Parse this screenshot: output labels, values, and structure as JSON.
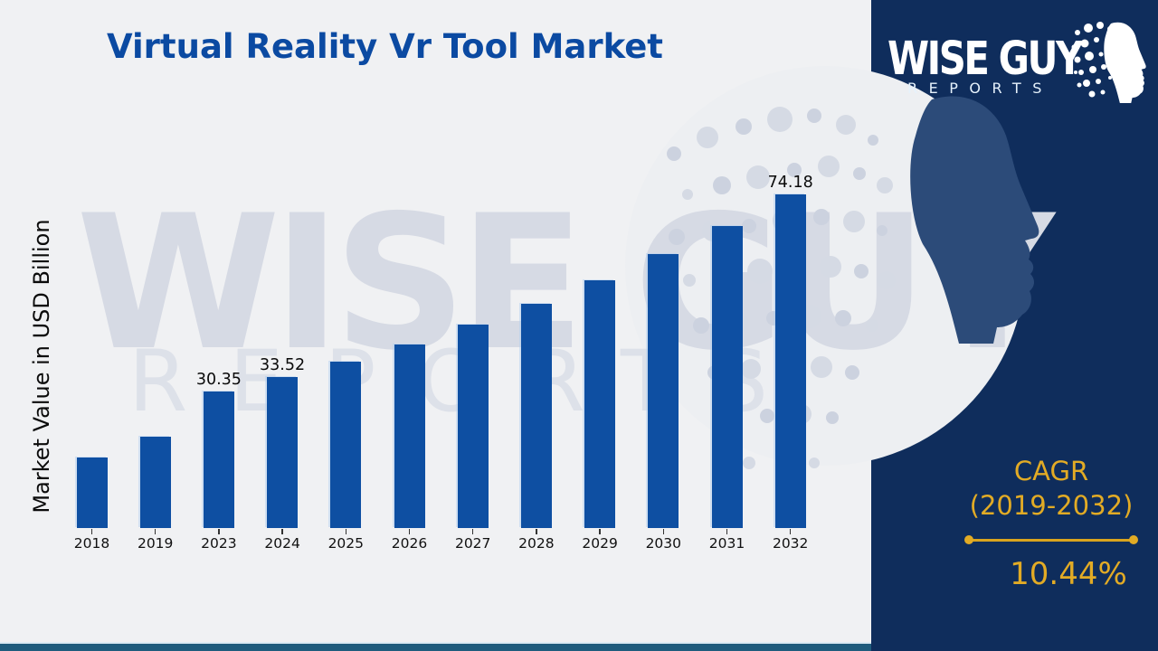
{
  "page": {
    "title": "Virtual Reality Vr Tool Market"
  },
  "logo": {
    "line1": "WISE GUY",
    "line2": "REPORTS"
  },
  "watermark": {
    "line1": "WISE GUY",
    "line2": "REPORTS"
  },
  "cagr": {
    "label": "CAGR",
    "range": "(2019-2032)",
    "value": "10.44%"
  },
  "colors": {
    "bar": "#0e4fa2",
    "title": "#0b4aa2",
    "navy_panel": "#0f2d5c",
    "face_silhouette": "#2c4b79",
    "gold": "#e2ab25",
    "teal_strip": "#1f5c7d",
    "watermark_text": "#d6dae4",
    "watermark_circle": "#edeff2",
    "watermark_dot": "#ccd2df"
  },
  "chart_data": {
    "type": "bar",
    "title": "Virtual Reality Vr Tool Market",
    "categories": [
      "2018",
      "2019",
      "2023",
      "2024",
      "2025",
      "2026",
      "2027",
      "2028",
      "2029",
      "2030",
      "2031",
      "2032"
    ],
    "values": [
      15.7,
      20.4,
      30.35,
      33.52,
      37.02,
      40.88,
      45.15,
      49.86,
      55.07,
      60.82,
      67.17,
      74.18
    ],
    "point_labels": [
      "",
      "",
      "30.35",
      "33.52",
      "",
      "",
      "",
      "",
      "",
      "",
      "",
      "74.18"
    ],
    "xlabel": "",
    "ylabel": "Market Value in USD Billion",
    "ylim": [
      0,
      80
    ],
    "grid": false,
    "legend": null,
    "bar_color": "#0e4fa2"
  }
}
